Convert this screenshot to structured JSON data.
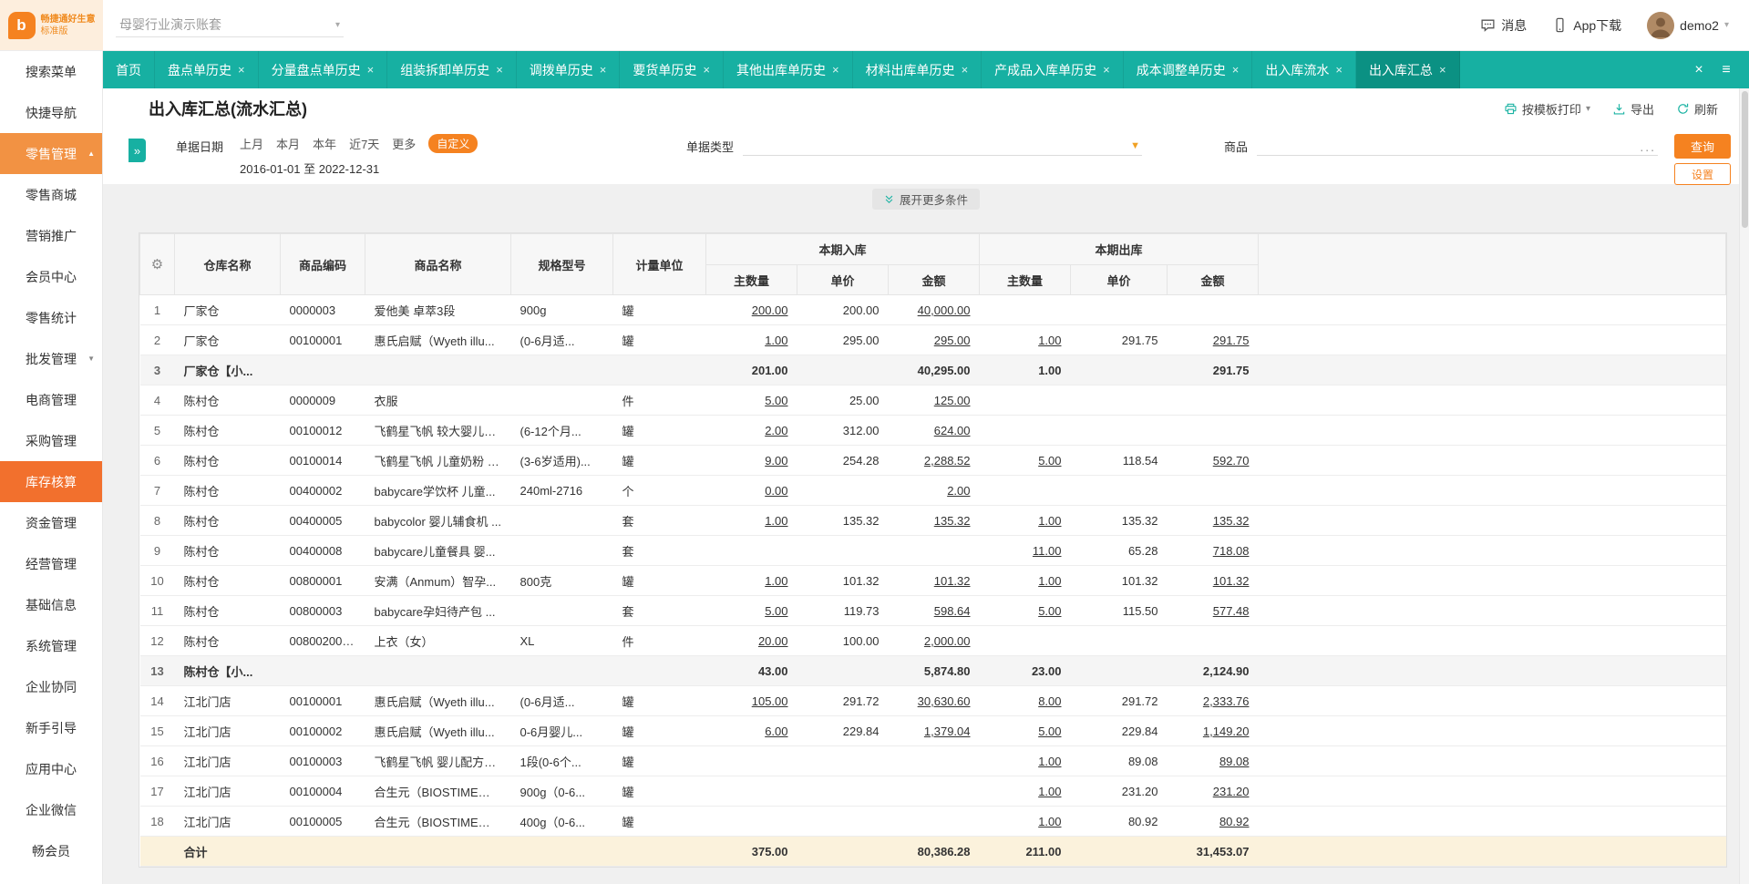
{
  "colors": {
    "teal": "#17b0a2",
    "teal_dark": "#0b9183",
    "orange": "#f58220",
    "sidebar_highlight_1": "#f29243",
    "sidebar_highlight_2": "#f2702d",
    "total_row_bg": "#fbf2dc"
  },
  "topbar": {
    "logo_title": "畅捷通好生意",
    "logo_edition": "标准版",
    "account": "母婴行业演示账套",
    "messages_label": "消息",
    "app_download_label": "App下载",
    "username": "demo2"
  },
  "tabbar": {
    "tabs": [
      {
        "label": "首页",
        "closable": false,
        "active": false
      },
      {
        "label": "盘点单历史",
        "closable": true,
        "active": false
      },
      {
        "label": "分量盘点单历史",
        "closable": true,
        "active": false
      },
      {
        "label": "组装拆卸单历史",
        "closable": true,
        "active": false
      },
      {
        "label": "调拨单历史",
        "closable": true,
        "active": false
      },
      {
        "label": "要货单历史",
        "closable": true,
        "active": false
      },
      {
        "label": "其他出库单历史",
        "closable": true,
        "active": false
      },
      {
        "label": "材料出库单历史",
        "closable": true,
        "active": false
      },
      {
        "label": "产成品入库单历史",
        "closable": true,
        "active": false
      },
      {
        "label": "成本调整单历史",
        "closable": true,
        "active": false
      },
      {
        "label": "出入库流水",
        "closable": true,
        "active": false
      },
      {
        "label": "出入库汇总",
        "closable": true,
        "active": true
      }
    ]
  },
  "sidebar": {
    "items": [
      {
        "label": "搜索菜单"
      },
      {
        "label": "快捷导航"
      },
      {
        "label": "零售管理",
        "style": "hl1",
        "arrow": "▲"
      },
      {
        "label": "零售商城"
      },
      {
        "label": "营销推广"
      },
      {
        "label": "会员中心"
      },
      {
        "label": "零售统计"
      },
      {
        "label": "批发管理",
        "arrow": "▼"
      },
      {
        "label": "电商管理"
      },
      {
        "label": "采购管理"
      },
      {
        "label": "库存核算",
        "style": "hl2"
      },
      {
        "label": "资金管理"
      },
      {
        "label": "经营管理"
      },
      {
        "label": "基础信息"
      },
      {
        "label": "系统管理"
      },
      {
        "label": "企业协同"
      },
      {
        "label": "新手引导"
      },
      {
        "label": "应用中心"
      },
      {
        "label": "企业微信"
      },
      {
        "label": "畅会员"
      }
    ]
  },
  "page": {
    "title": "出入库汇总(流水汇总)",
    "print_label": "按模板打印",
    "export_label": "导出",
    "refresh_label": "刷新"
  },
  "filters": {
    "date_label": "单据日期",
    "date_quick_options": [
      "上月",
      "本月",
      "本年",
      "近7天",
      "更多"
    ],
    "date_custom_badge": "自定义",
    "date_range": "2016-01-01 至 2022-12-31",
    "doc_type_label": "单据类型",
    "product_label": "商品",
    "product_more": "...",
    "search_button": "查询",
    "settings_button": "设置",
    "expand_more_label": "展开更多条件"
  },
  "table": {
    "headers": {
      "warehouse": "仓库名称",
      "code": "商品编码",
      "name": "商品名称",
      "spec": "规格型号",
      "unit": "计量单位",
      "in_group": "本期入库",
      "out_group": "本期出库",
      "qty": "主数量",
      "price": "单价",
      "amount": "金额"
    },
    "rows": [
      {
        "type": "data",
        "n": "1",
        "warehouse": "厂家仓",
        "code": "0000003",
        "name": "爱他美 卓萃3段",
        "spec": "900g",
        "unit": "罐",
        "in_qty": "200.00",
        "in_price": "200.00",
        "in_amt": "40,000.00",
        "out_qty": "",
        "out_price": "",
        "out_amt": ""
      },
      {
        "type": "data",
        "n": "2",
        "warehouse": "厂家仓",
        "code": "00100001",
        "name": "惠氏启赋（Wyeth illu...",
        "spec": "(0-6月适...",
        "unit": "罐",
        "in_qty": "1.00",
        "in_price": "295.00",
        "in_amt": "295.00",
        "out_qty": "1.00",
        "out_price": "291.75",
        "out_amt": "291.75"
      },
      {
        "type": "group",
        "n": "3",
        "warehouse": "厂家仓【小...",
        "code": "",
        "name": "",
        "spec": "",
        "unit": "",
        "in_qty": "201.00",
        "in_price": "",
        "in_amt": "40,295.00",
        "out_qty": "1.00",
        "out_price": "",
        "out_amt": "291.75"
      },
      {
        "type": "data",
        "n": "4",
        "warehouse": "陈村仓",
        "code": "0000009",
        "name": "衣服",
        "spec": "",
        "unit": "件",
        "in_qty": "5.00",
        "in_price": "25.00",
        "in_amt": "125.00",
        "out_qty": "",
        "out_price": "",
        "out_amt": ""
      },
      {
        "type": "data",
        "n": "5",
        "warehouse": "陈村仓",
        "code": "00100012",
        "name": "飞鹤星飞帆 较大婴儿配...",
        "spec": "(6-12个月...",
        "unit": "罐",
        "in_qty": "2.00",
        "in_price": "312.00",
        "in_amt": "624.00",
        "out_qty": "",
        "out_price": "",
        "out_amt": ""
      },
      {
        "type": "data",
        "n": "6",
        "warehouse": "陈村仓",
        "code": "00100014",
        "name": "飞鹤星飞帆 儿童奶粉 4...",
        "spec": "(3-6岁适用)...",
        "unit": "罐",
        "in_qty": "9.00",
        "in_price": "254.28",
        "in_amt": "2,288.52",
        "out_qty": "5.00",
        "out_price": "118.54",
        "out_amt": "592.70"
      },
      {
        "type": "data",
        "n": "7",
        "warehouse": "陈村仓",
        "code": "00400002",
        "name": "babycare学饮杯 儿童...",
        "spec": "240ml-2716",
        "unit": "个",
        "in_qty": "0.00",
        "in_price": "",
        "in_amt": "2.00",
        "out_qty": "",
        "out_price": "",
        "out_amt": ""
      },
      {
        "type": "data",
        "n": "8",
        "warehouse": "陈村仓",
        "code": "00400005",
        "name": "babycolor 婴儿辅食机 ...",
        "spec": "",
        "unit": "套",
        "in_qty": "1.00",
        "in_price": "135.32",
        "in_amt": "135.32",
        "out_qty": "1.00",
        "out_price": "135.32",
        "out_amt": "135.32"
      },
      {
        "type": "data",
        "n": "9",
        "warehouse": "陈村仓",
        "code": "00400008",
        "name": "babycare儿童餐具 婴...",
        "spec": "",
        "unit": "套",
        "in_qty": "",
        "in_price": "",
        "in_amt": "",
        "out_qty": "11.00",
        "out_price": "65.28",
        "out_amt": "718.08"
      },
      {
        "type": "data",
        "n": "10",
        "warehouse": "陈村仓",
        "code": "00800001",
        "name": "安满（Anmum）智孕...",
        "spec": "800克",
        "unit": "罐",
        "in_qty": "1.00",
        "in_price": "101.32",
        "in_amt": "101.32",
        "out_qty": "1.00",
        "out_price": "101.32",
        "out_amt": "101.32"
      },
      {
        "type": "data",
        "n": "11",
        "warehouse": "陈村仓",
        "code": "00800003",
        "name": "babycare孕妇待产包 ...",
        "spec": "",
        "unit": "套",
        "in_qty": "5.00",
        "in_price": "119.73",
        "in_amt": "598.64",
        "out_qty": "5.00",
        "out_price": "115.50",
        "out_amt": "577.48"
      },
      {
        "type": "data",
        "n": "12",
        "warehouse": "陈村仓",
        "code": "008002000...",
        "name": "上衣（女）",
        "spec": "XL",
        "unit": "件",
        "in_qty": "20.00",
        "in_price": "100.00",
        "in_amt": "2,000.00",
        "out_qty": "",
        "out_price": "",
        "out_amt": ""
      },
      {
        "type": "group",
        "n": "13",
        "warehouse": "陈村仓【小...",
        "code": "",
        "name": "",
        "spec": "",
        "unit": "",
        "in_qty": "43.00",
        "in_price": "",
        "in_amt": "5,874.80",
        "out_qty": "23.00",
        "out_price": "",
        "out_amt": "2,124.90"
      },
      {
        "type": "data",
        "n": "14",
        "warehouse": "江北门店",
        "code": "00100001",
        "name": "惠氏启赋（Wyeth illu...",
        "spec": "(0-6月适...",
        "unit": "罐",
        "in_qty": "105.00",
        "in_price": "291.72",
        "in_amt": "30,630.60",
        "out_qty": "8.00",
        "out_price": "291.72",
        "out_amt": "2,333.76"
      },
      {
        "type": "data",
        "n": "15",
        "warehouse": "江北门店",
        "code": "00100002",
        "name": "惠氏启赋（Wyeth illu...",
        "spec": "0-6月婴儿...",
        "unit": "罐",
        "in_qty": "6.00",
        "in_price": "229.84",
        "in_amt": "1,379.04",
        "out_qty": "5.00",
        "out_price": "229.84",
        "out_amt": "1,149.20"
      },
      {
        "type": "data",
        "n": "16",
        "warehouse": "江北门店",
        "code": "00100003",
        "name": "飞鹤星飞帆 婴儿配方奶...",
        "spec": "1段(0-6个...",
        "unit": "罐",
        "in_qty": "",
        "in_price": "",
        "in_amt": "",
        "out_qty": "1.00",
        "out_price": "89.08",
        "out_amt": "89.08"
      },
      {
        "type": "data",
        "n": "17",
        "warehouse": "江北门店",
        "code": "00100004",
        "name": "合生元（BIOSTIME） ...",
        "spec": "900g（0-6...",
        "unit": "罐",
        "in_qty": "",
        "in_price": "",
        "in_amt": "",
        "out_qty": "1.00",
        "out_price": "231.20",
        "out_amt": "231.20"
      },
      {
        "type": "data",
        "n": "18",
        "warehouse": "江北门店",
        "code": "00100005",
        "name": "合生元（BIOSTIME） ...",
        "spec": "400g（0-6...",
        "unit": "罐",
        "in_qty": "",
        "in_price": "",
        "in_amt": "",
        "out_qty": "1.00",
        "out_price": "80.92",
        "out_amt": "80.92"
      },
      {
        "type": "total",
        "n": "",
        "warehouse": "合计",
        "code": "",
        "name": "",
        "spec": "",
        "unit": "",
        "in_qty": "375.00",
        "in_price": "",
        "in_amt": "80,386.28",
        "out_qty": "211.00",
        "out_price": "",
        "out_amt": "31,453.07"
      }
    ]
  }
}
